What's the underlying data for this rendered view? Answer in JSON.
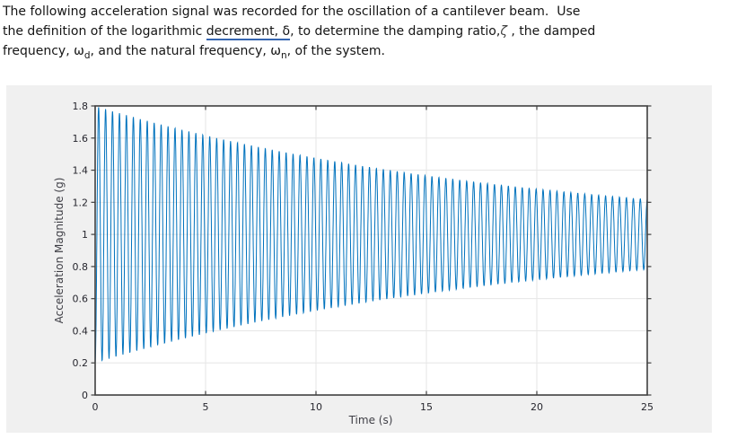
{
  "problem": {
    "segments": [
      {
        "t": "The following acceleration signal was recorded for the oscillation of a cantilever beam.  Use",
        "s": "plain"
      },
      {
        "s": "br"
      },
      {
        "t": "the definition of the logarithmic ",
        "s": "plain"
      },
      {
        "t": "decrement, δ",
        "s": "underline"
      },
      {
        "t": ", to determine the damping ratio,",
        "s": "plain"
      },
      {
        "t": "ζ",
        "s": "italic"
      },
      {
        "t": " , the damped",
        "s": "plain"
      },
      {
        "s": "br"
      },
      {
        "t": "frequency, ",
        "s": "plain"
      },
      {
        "t": "ω",
        "s": "plain"
      },
      {
        "t": "d",
        "s": "sub"
      },
      {
        "t": ", and the natural frequency, ",
        "s": "plain"
      },
      {
        "t": "ω",
        "s": "plain"
      },
      {
        "t": "n",
        "s": "sub"
      },
      {
        "t": ", of the system.",
        "s": "plain"
      }
    ],
    "underline_color": "#3565b0"
  },
  "figure": {
    "panel_background": "#f0f0f0",
    "plot_background": "#ffffff"
  },
  "chart_data": {
    "type": "line",
    "title": "",
    "xlabel": "Time (s)",
    "ylabel": "Acceleration Magnitude (g)",
    "xlim": [
      0,
      25
    ],
    "ylim": [
      0,
      1.8
    ],
    "xticks": [
      0,
      5,
      10,
      15,
      20,
      25
    ],
    "xtick_labels": [
      "0",
      "5",
      "10",
      "15",
      "20",
      "25"
    ],
    "yticks": [
      0,
      0.2,
      0.4,
      0.6,
      0.8,
      1,
      1.2,
      1.4,
      1.6,
      1.8
    ],
    "ytick_labels": [
      "0",
      "0.2",
      "0.4",
      "0.6",
      "0.8",
      "1",
      "1.2",
      "1.4",
      "1.6",
      "1.8"
    ],
    "grid": true,
    "legend": null,
    "line_color": "#0072BD",
    "grid_color": "#e6e6e6",
    "axis_color": "#404040",
    "signal": {
      "model": "a(t) = baseline + amplitude * exp(-decay * t) * sin(2*pi*freq*t + phase)",
      "baseline_g": 1.0,
      "initial_amplitude_g": 0.8,
      "decay_rate_per_s": 0.052,
      "damped_frequency_hz": 3.18,
      "phase_rad": -1.5708,
      "duration_s": 25,
      "sample_dt_s": 0.01,
      "peak_start_g": 1.8,
      "trough_start_g": 0.2,
      "peak_end_g": 1.22,
      "trough_end_g": 0.78
    }
  }
}
